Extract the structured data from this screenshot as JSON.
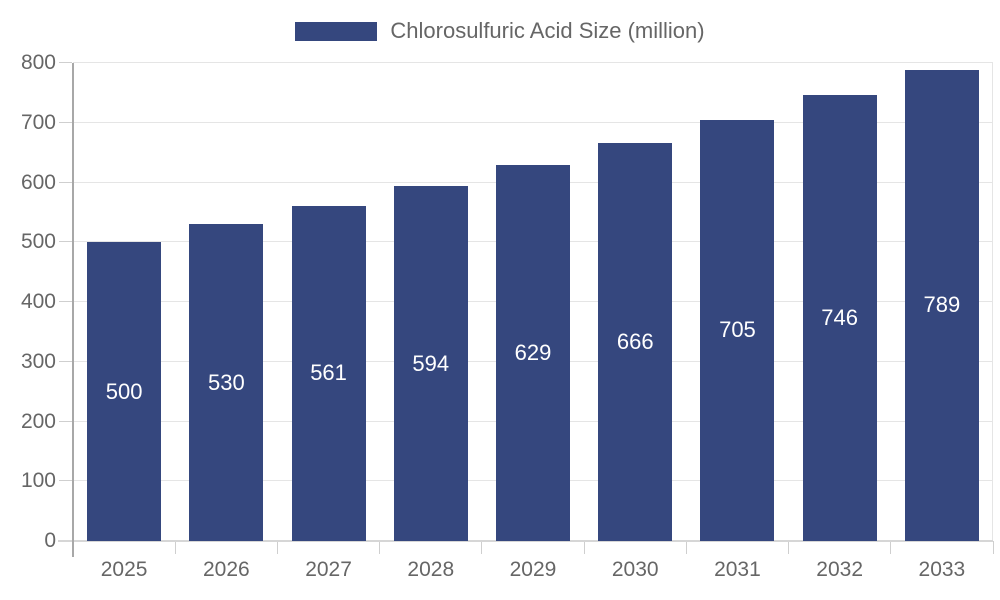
{
  "chart_data": {
    "type": "bar",
    "title": "Chlorosulfuric Acid Size (million)",
    "legend_entries": [
      "Chlorosulfuric Acid Size (million)"
    ],
    "legend_position": "top",
    "categories": [
      "2025",
      "2026",
      "2027",
      "2028",
      "2029",
      "2030",
      "2031",
      "2032",
      "2033"
    ],
    "values": [
      500,
      530,
      561,
      594,
      629,
      666,
      705,
      746,
      789
    ],
    "value_labels_position": "inside-center",
    "xlabel": "",
    "ylabel": "",
    "ylim": [
      0,
      800
    ],
    "yticks": [
      0,
      100,
      200,
      300,
      400,
      500,
      600,
      700,
      800
    ],
    "grid": true
  },
  "colors": {
    "bar": "#35477E",
    "bar_value_label": "#FFFFFF",
    "axis_text": "#666666",
    "legend_text": "#666666",
    "gridline": "#E5E5E5",
    "plot_border": "#E5E5E5",
    "x_axis_line": "#D6D6D6",
    "y_axis_line": "#A8A8A8",
    "tick": "#CFCFCF",
    "background": "#FFFFFF"
  }
}
